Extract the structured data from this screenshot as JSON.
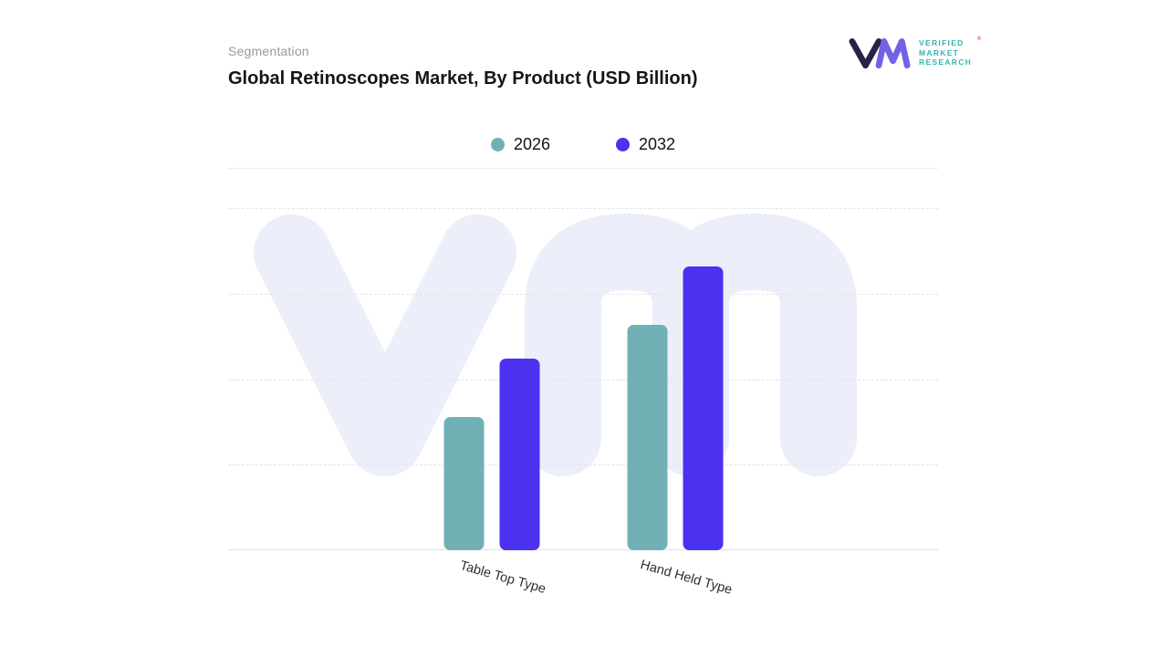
{
  "header": {
    "eyebrow": "Segmentation",
    "title": "Global Retinoscopes Market, By Product (USD Billion)"
  },
  "logo": {
    "lines": [
      "VERIFIED",
      "MARKET",
      "RESEARCH"
    ],
    "registered": "®",
    "teal": "#38b2af",
    "navy": "#272347",
    "purple": "#7163e8"
  },
  "colors": {
    "series_2026": "#71b1b5",
    "series_2032": "#4b31f0",
    "watermark": "#eceefa",
    "gridline": "#e4e4ea"
  },
  "chart_data": {
    "type": "bar",
    "title": "Global Retinoscopes Market, By Product (USD Billion)",
    "categories": [
      "Table Top Type",
      "Hand Held Type"
    ],
    "series": [
      {
        "name": "2026",
        "color": "#71b1b5",
        "values": [
          39,
          66
        ]
      },
      {
        "name": "2032",
        "color": "#4b31f0",
        "values": [
          56,
          83
        ]
      }
    ],
    "xlabel": "",
    "ylabel": "USD Billion",
    "ylim": [
      0,
      100
    ],
    "value_axis_visible": false,
    "grid": "horizontal-dashed",
    "legend_position": "top-center"
  }
}
